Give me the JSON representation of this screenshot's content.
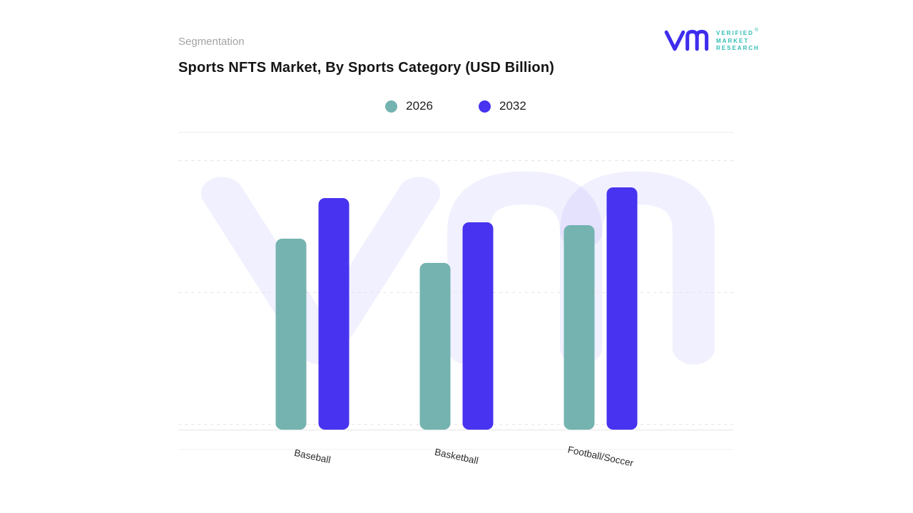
{
  "page": {
    "eyebrow": "Segmentation",
    "title": "Sports NFTS Market, By Sports Category (USD Billion)"
  },
  "logo": {
    "registered": "®",
    "lines": [
      "VERIFIED",
      "MARKET",
      "RESEARCH"
    ],
    "mark_color": "#3e2ded",
    "text_color": "#2fbcb4"
  },
  "chart_data": {
    "type": "bar",
    "title": "Sports NFTS Market, By Sports Category (USD Billion)",
    "categories": [
      "Baseball",
      "Basketball",
      "Football/Soccer"
    ],
    "series": [
      {
        "name": "2026",
        "color": "#74b3b0",
        "values": [
          71,
          62,
          76
        ]
      },
      {
        "name": "2032",
        "color": "#4733f0",
        "values": [
          86,
          77,
          90
        ]
      }
    ],
    "xlabel": "",
    "ylabel": "",
    "ylim": [
      0,
      100
    ],
    "value_note": "no numeric axis shown; values are bar heights as % of plot height",
    "grid": "horizontal dashed",
    "legend_position": "top-center",
    "watermark": "VMR monogram"
  }
}
